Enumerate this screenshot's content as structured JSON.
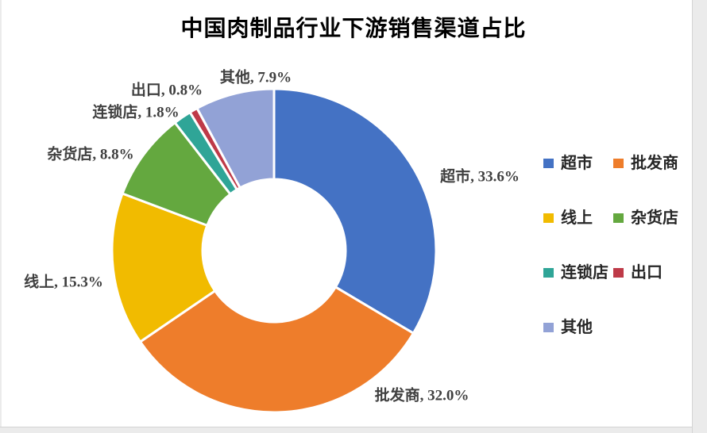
{
  "title": "中国肉制品行业下游销售渠道占比",
  "chart_data": {
    "type": "pie",
    "subtype": "donut",
    "title": "中国肉制品行业下游销售渠道占比",
    "categories": [
      "超市",
      "批发商",
      "线上",
      "杂货店",
      "连锁店",
      "出口",
      "其他"
    ],
    "values": [
      33.6,
      32.0,
      15.3,
      8.8,
      1.8,
      0.8,
      7.9
    ],
    "data_labels": [
      "超市, 33.6%",
      "批发商, 32.0%",
      "线上, 15.3%",
      "杂货店, 8.8%",
      "连锁店, 1.8%",
      "出口, 0.8%",
      "其他, 7.9%"
    ],
    "colors": [
      "#4472C4",
      "#EE7D2B",
      "#F1BB00",
      "#64A83F",
      "#2FA597",
      "#BE3A48",
      "#92A2D6"
    ],
    "start_angle_deg": 0,
    "direction": "clockwise",
    "inner_radius_ratio": 0.44,
    "slice_gap_color": "#FFFFFF",
    "legend_position": "right",
    "legend": {
      "items": [
        {
          "label": "超市",
          "color": "#4472C4"
        },
        {
          "label": "批发商",
          "color": "#EE7D2B"
        },
        {
          "label": "线上",
          "color": "#F1BB00"
        },
        {
          "label": "杂货店",
          "color": "#64A83F"
        },
        {
          "label": "连锁店",
          "color": "#2FA597"
        },
        {
          "label": "出口",
          "color": "#BE3A48"
        },
        {
          "label": "其他",
          "color": "#92A2D6"
        }
      ]
    }
  }
}
